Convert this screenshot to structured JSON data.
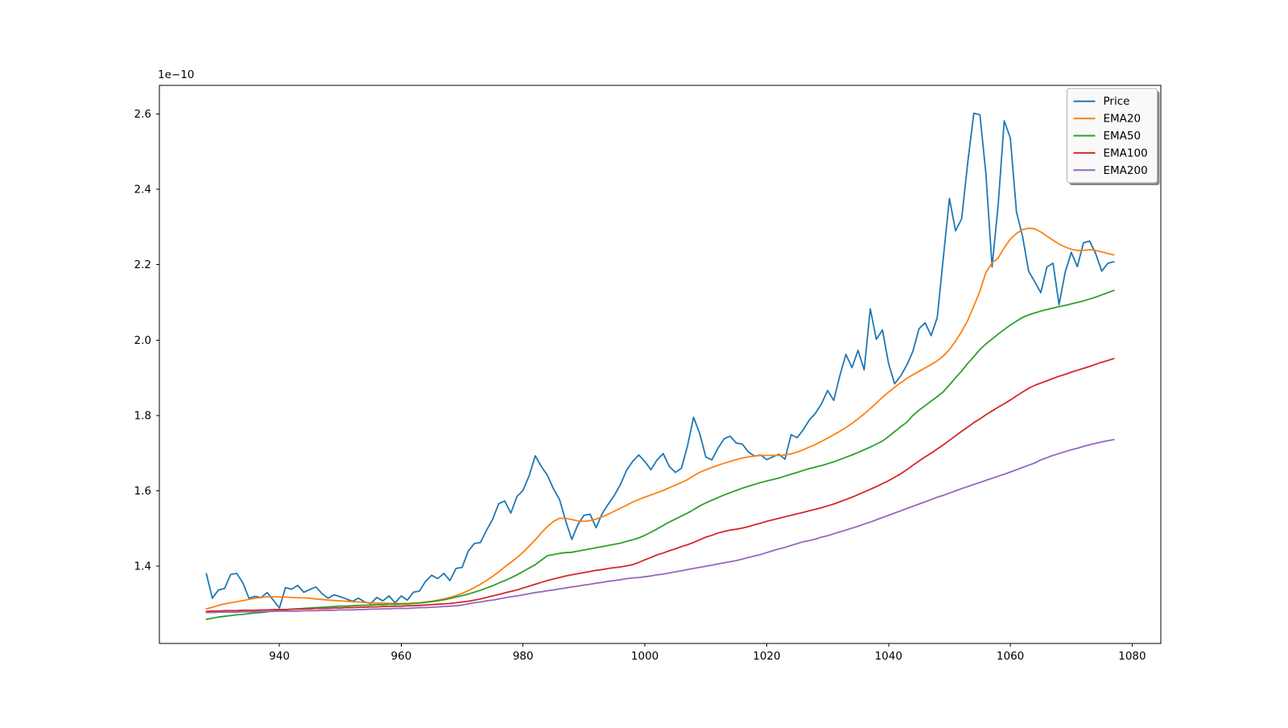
{
  "figure": {
    "background": "#ffffff"
  },
  "legend": {
    "position": "upper right",
    "shadow": true,
    "border_color": "#b0b0b0",
    "shadow_color": "#888888",
    "entries": [
      {
        "label": "Price",
        "color": "#1f77b4"
      },
      {
        "label": "EMA20",
        "color": "#ff7f0e"
      },
      {
        "label": "EMA50",
        "color": "#2ca02c"
      },
      {
        "label": "EMA100",
        "color": "#d62728"
      },
      {
        "label": "EMA200",
        "color": "#9467bd"
      }
    ]
  },
  "chart_data": {
    "type": "line",
    "title": "",
    "xlabel": "",
    "ylabel": "",
    "grid": false,
    "y_offset_label": "1e−10",
    "y_scale_factor": "1e-10",
    "xlim": [
      920.3,
      1084.7
    ],
    "ylim": [
      1.195,
      2.676
    ],
    "x_ticks": [
      940,
      960,
      980,
      1000,
      1020,
      1040,
      1060,
      1080
    ],
    "y_ticks": [
      1.4,
      1.6,
      1.8,
      2.0,
      2.2,
      2.4,
      2.6
    ],
    "legend_position": "upper right",
    "x": [
      928,
      929,
      930,
      931,
      932,
      933,
      934,
      935,
      936,
      937,
      938,
      939,
      940,
      941,
      942,
      943,
      944,
      945,
      946,
      947,
      948,
      949,
      950,
      951,
      952,
      953,
      954,
      955,
      956,
      957,
      958,
      959,
      960,
      961,
      962,
      963,
      964,
      965,
      966,
      967,
      968,
      969,
      970,
      971,
      972,
      973,
      974,
      975,
      976,
      977,
      978,
      979,
      980,
      981,
      982,
      983,
      984,
      985,
      986,
      987,
      988,
      989,
      990,
      991,
      992,
      993,
      994,
      995,
      996,
      997,
      998,
      999,
      1000,
      1001,
      1002,
      1003,
      1004,
      1005,
      1006,
      1007,
      1008,
      1009,
      1010,
      1011,
      1012,
      1013,
      1014,
      1015,
      1016,
      1017,
      1018,
      1019,
      1020,
      1021,
      1022,
      1023,
      1024,
      1025,
      1026,
      1027,
      1028,
      1029,
      1030,
      1031,
      1032,
      1033,
      1034,
      1035,
      1036,
      1037,
      1038,
      1039,
      1040,
      1041,
      1042,
      1043,
      1044,
      1045,
      1046,
      1047,
      1048,
      1049,
      1050,
      1051,
      1052,
      1053,
      1054,
      1055,
      1056,
      1057,
      1058,
      1059,
      1060,
      1061,
      1062,
      1063,
      1064,
      1065,
      1066,
      1067,
      1068,
      1069,
      1070,
      1071,
      1072,
      1073,
      1074,
      1075,
      1076,
      1077
    ],
    "series": [
      {
        "name": "Price",
        "color": "#1f77b4",
        "values": [
          1.38,
          1.315,
          1.337,
          1.341,
          1.378,
          1.381,
          1.356,
          1.315,
          1.32,
          1.317,
          1.33,
          1.31,
          1.289,
          1.343,
          1.339,
          1.349,
          1.331,
          1.338,
          1.345,
          1.327,
          1.315,
          1.324,
          1.319,
          1.313,
          1.307,
          1.315,
          1.305,
          1.301,
          1.317,
          1.308,
          1.321,
          1.303,
          1.321,
          1.31,
          1.331,
          1.334,
          1.36,
          1.376,
          1.367,
          1.381,
          1.362,
          1.394,
          1.397,
          1.44,
          1.46,
          1.463,
          1.495,
          1.524,
          1.566,
          1.573,
          1.541,
          1.585,
          1.601,
          1.64,
          1.693,
          1.665,
          1.641,
          1.605,
          1.577,
          1.52,
          1.471,
          1.51,
          1.535,
          1.538,
          1.502,
          1.54,
          1.565,
          1.588,
          1.617,
          1.655,
          1.678,
          1.695,
          1.678,
          1.656,
          1.682,
          1.699,
          1.665,
          1.649,
          1.66,
          1.72,
          1.795,
          1.752,
          1.69,
          1.682,
          1.713,
          1.738,
          1.745,
          1.727,
          1.724,
          1.703,
          1.692,
          1.695,
          1.683,
          1.69,
          1.697,
          1.684,
          1.749,
          1.741,
          1.762,
          1.788,
          1.806,
          1.831,
          1.866,
          1.84,
          1.905,
          1.962,
          1.927,
          1.973,
          1.921,
          2.083,
          2.002,
          2.027,
          1.938,
          1.884,
          1.905,
          1.934,
          1.97,
          2.03,
          2.046,
          2.012,
          2.06,
          2.22,
          2.376,
          2.29,
          2.322,
          2.47,
          2.602,
          2.598,
          2.44,
          2.194,
          2.36,
          2.582,
          2.536,
          2.34,
          2.276,
          2.183,
          2.155,
          2.126,
          2.194,
          2.204,
          2.094,
          2.18,
          2.233,
          2.195,
          2.258,
          2.263,
          2.23,
          2.183,
          2.204,
          2.208
        ]
      },
      {
        "name": "EMA20",
        "color": "#ff7f0e",
        "values": [
          1.287,
          1.291,
          1.296,
          1.3,
          1.303,
          1.306,
          1.309,
          1.312,
          1.315,
          1.317,
          1.319,
          1.319,
          1.318,
          1.318,
          1.317,
          1.316,
          1.316,
          1.315,
          1.313,
          1.312,
          1.31,
          1.309,
          1.308,
          1.307,
          1.306,
          1.305,
          1.304,
          1.303,
          1.302,
          1.302,
          1.301,
          1.301,
          1.301,
          1.301,
          1.302,
          1.303,
          1.305,
          1.307,
          1.31,
          1.313,
          1.317,
          1.322,
          1.328,
          1.335,
          1.343,
          1.352,
          1.362,
          1.373,
          1.385,
          1.398,
          1.41,
          1.423,
          1.437,
          1.453,
          1.47,
          1.488,
          1.505,
          1.519,
          1.527,
          1.527,
          1.524,
          1.52,
          1.519,
          1.521,
          1.525,
          1.531,
          1.538,
          1.546,
          1.554,
          1.562,
          1.57,
          1.577,
          1.583,
          1.589,
          1.595,
          1.601,
          1.608,
          1.615,
          1.622,
          1.63,
          1.64,
          1.649,
          1.656,
          1.662,
          1.668,
          1.673,
          1.678,
          1.683,
          1.687,
          1.69,
          1.692,
          1.694,
          1.694,
          1.694,
          1.694,
          1.695,
          1.698,
          1.703,
          1.709,
          1.716,
          1.723,
          1.731,
          1.74,
          1.749,
          1.758,
          1.768,
          1.779,
          1.791,
          1.804,
          1.818,
          1.833,
          1.848,
          1.862,
          1.875,
          1.887,
          1.898,
          1.908,
          1.917,
          1.926,
          1.935,
          1.945,
          1.958,
          1.975,
          1.997,
          2.023,
          2.052,
          2.09,
          2.13,
          2.18,
          2.205,
          2.218,
          2.245,
          2.268,
          2.283,
          2.293,
          2.297,
          2.295,
          2.287,
          2.276,
          2.265,
          2.255,
          2.247,
          2.241,
          2.238,
          2.238,
          2.24,
          2.238,
          2.234,
          2.23,
          2.226
        ]
      },
      {
        "name": "EMA50",
        "color": "#2ca02c",
        "values": [
          1.259,
          1.262,
          1.265,
          1.267,
          1.269,
          1.271,
          1.272,
          1.274,
          1.276,
          1.277,
          1.279,
          1.281,
          1.283,
          1.284,
          1.286,
          1.287,
          1.288,
          1.289,
          1.29,
          1.291,
          1.292,
          1.293,
          1.294,
          1.294,
          1.295,
          1.296,
          1.296,
          1.297,
          1.298,
          1.298,
          1.299,
          1.299,
          1.3,
          1.3,
          1.301,
          1.302,
          1.304,
          1.306,
          1.308,
          1.311,
          1.314,
          1.318,
          1.322,
          1.326,
          1.331,
          1.336,
          1.342,
          1.348,
          1.355,
          1.362,
          1.369,
          1.377,
          1.386,
          1.395,
          1.404,
          1.416,
          1.428,
          1.431,
          1.434,
          1.436,
          1.437,
          1.44,
          1.443,
          1.446,
          1.449,
          1.452,
          1.455,
          1.458,
          1.461,
          1.466,
          1.47,
          1.475,
          1.482,
          1.49,
          1.499,
          1.508,
          1.517,
          1.525,
          1.533,
          1.541,
          1.55,
          1.56,
          1.568,
          1.575,
          1.582,
          1.589,
          1.595,
          1.601,
          1.607,
          1.612,
          1.617,
          1.622,
          1.626,
          1.63,
          1.634,
          1.639,
          1.644,
          1.649,
          1.654,
          1.659,
          1.663,
          1.667,
          1.672,
          1.677,
          1.683,
          1.689,
          1.695,
          1.702,
          1.709,
          1.716,
          1.724,
          1.732,
          1.744,
          1.757,
          1.77,
          1.782,
          1.8,
          1.814,
          1.826,
          1.838,
          1.85,
          1.863,
          1.881,
          1.9,
          1.918,
          1.938,
          1.956,
          1.975,
          1.99,
          2.003,
          2.016,
          2.028,
          2.04,
          2.05,
          2.06,
          2.067,
          2.072,
          2.077,
          2.081,
          2.085,
          2.089,
          2.092,
          2.096,
          2.1,
          2.104,
          2.109,
          2.114,
          2.12,
          2.126,
          2.132
        ]
      },
      {
        "name": "EMA100",
        "color": "#d62728",
        "values": [
          1.28,
          1.281,
          1.281,
          1.282,
          1.282,
          1.282,
          1.283,
          1.283,
          1.283,
          1.284,
          1.284,
          1.285,
          1.285,
          1.285,
          1.286,
          1.286,
          1.287,
          1.287,
          1.288,
          1.288,
          1.288,
          1.289,
          1.289,
          1.29,
          1.29,
          1.291,
          1.291,
          1.292,
          1.292,
          1.293,
          1.293,
          1.294,
          1.294,
          1.295,
          1.295,
          1.296,
          1.297,
          1.298,
          1.299,
          1.3,
          1.301,
          1.303,
          1.305,
          1.307,
          1.31,
          1.313,
          1.317,
          1.321,
          1.325,
          1.329,
          1.333,
          1.337,
          1.342,
          1.347,
          1.352,
          1.357,
          1.362,
          1.366,
          1.37,
          1.374,
          1.377,
          1.38,
          1.383,
          1.386,
          1.389,
          1.391,
          1.394,
          1.396,
          1.398,
          1.401,
          1.404,
          1.41,
          1.417,
          1.423,
          1.43,
          1.435,
          1.441,
          1.446,
          1.452,
          1.457,
          1.463,
          1.47,
          1.477,
          1.482,
          1.488,
          1.492,
          1.496,
          1.498,
          1.501,
          1.505,
          1.51,
          1.514,
          1.519,
          1.523,
          1.527,
          1.531,
          1.535,
          1.539,
          1.543,
          1.547,
          1.551,
          1.555,
          1.56,
          1.565,
          1.571,
          1.577,
          1.583,
          1.59,
          1.597,
          1.604,
          1.611,
          1.619,
          1.627,
          1.636,
          1.645,
          1.656,
          1.668,
          1.679,
          1.69,
          1.7,
          1.711,
          1.722,
          1.734,
          1.746,
          1.758,
          1.769,
          1.781,
          1.791,
          1.802,
          1.812,
          1.822,
          1.831,
          1.841,
          1.852,
          1.862,
          1.872,
          1.88,
          1.886,
          1.892,
          1.898,
          1.904,
          1.909,
          1.915,
          1.92,
          1.925,
          1.93,
          1.936,
          1.941,
          1.946,
          1.951
        ]
      },
      {
        "name": "EMA200",
        "color": "#9467bd",
        "values": [
          1.277,
          1.277,
          1.278,
          1.278,
          1.278,
          1.278,
          1.279,
          1.279,
          1.279,
          1.28,
          1.28,
          1.28,
          1.281,
          1.281,
          1.281,
          1.281,
          1.282,
          1.282,
          1.282,
          1.283,
          1.283,
          1.283,
          1.284,
          1.284,
          1.284,
          1.285,
          1.285,
          1.286,
          1.286,
          1.287,
          1.287,
          1.288,
          1.288,
          1.288,
          1.289,
          1.29,
          1.29,
          1.291,
          1.292,
          1.293,
          1.294,
          1.295,
          1.297,
          1.3,
          1.303,
          1.305,
          1.308,
          1.31,
          1.313,
          1.316,
          1.319,
          1.321,
          1.324,
          1.327,
          1.33,
          1.332,
          1.335,
          1.337,
          1.34,
          1.342,
          1.345,
          1.347,
          1.35,
          1.352,
          1.355,
          1.357,
          1.36,
          1.362,
          1.364,
          1.367,
          1.369,
          1.37,
          1.372,
          1.374,
          1.377,
          1.379,
          1.382,
          1.385,
          1.388,
          1.391,
          1.394,
          1.397,
          1.4,
          1.403,
          1.406,
          1.409,
          1.412,
          1.415,
          1.419,
          1.423,
          1.427,
          1.431,
          1.436,
          1.441,
          1.446,
          1.45,
          1.455,
          1.46,
          1.465,
          1.468,
          1.472,
          1.477,
          1.481,
          1.486,
          1.491,
          1.496,
          1.501,
          1.506,
          1.512,
          1.517,
          1.523,
          1.529,
          1.535,
          1.541,
          1.547,
          1.553,
          1.559,
          1.565,
          1.571,
          1.577,
          1.583,
          1.588,
          1.594,
          1.6,
          1.606,
          1.611,
          1.617,
          1.622,
          1.628,
          1.633,
          1.639,
          1.644,
          1.65,
          1.656,
          1.662,
          1.668,
          1.674,
          1.682,
          1.688,
          1.694,
          1.699,
          1.704,
          1.709,
          1.713,
          1.718,
          1.722,
          1.726,
          1.73,
          1.733,
          1.736
        ]
      }
    ]
  }
}
